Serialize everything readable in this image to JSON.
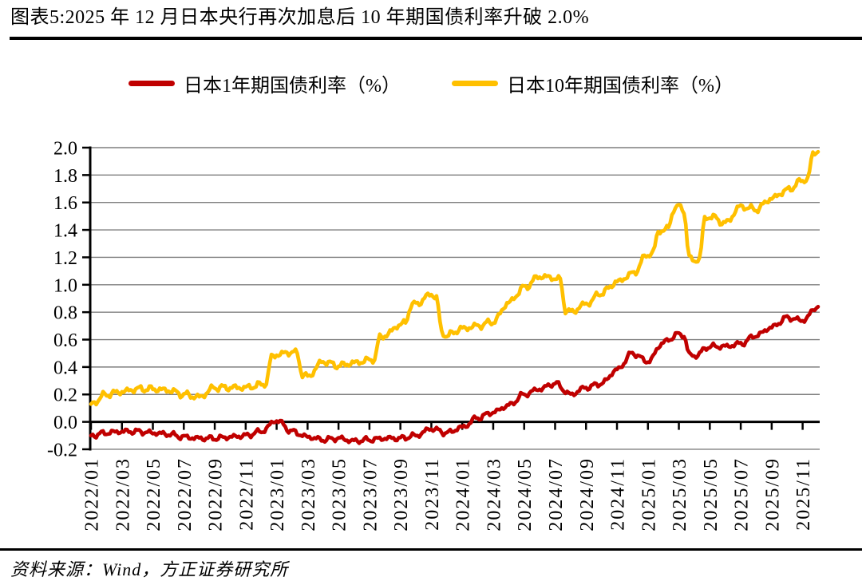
{
  "figure": {
    "title": "图表5:2025 年 12 月日本央行再次加息后 10 年期国债利率升破 2.0%",
    "source": "资料来源：Wind，方正证券研究所"
  },
  "legend": [
    {
      "label": "日本1年期国债利率（%）",
      "color": "#C00000"
    },
    {
      "label": "日本10年期国债利率（%）",
      "color": "#FFC000"
    }
  ],
  "chart_data": {
    "type": "line",
    "title": "2025年12月日本央行再次加息后10年期国债利率升破2.0%",
    "x_range": [
      "2022/01",
      "2025/12"
    ],
    "x_frequency": "monthly",
    "x_tick_labels": [
      "2022/01",
      "2022/03",
      "2022/05",
      "2022/07",
      "2022/09",
      "2022/11",
      "2023/01",
      "2023/03",
      "2023/05",
      "2023/07",
      "2023/09",
      "2023/11",
      "2024/01",
      "2024/03",
      "2024/05",
      "2024/07",
      "2024/09",
      "2024/11",
      "2025/01",
      "2025/03",
      "2025/05",
      "2025/07",
      "2025/09",
      "2025/11"
    ],
    "y_ticks": [
      "2.0",
      "1.8",
      "1.6",
      "1.4",
      "1.2",
      "1.0",
      "0.8",
      "0.6",
      "0.4",
      "0.2",
      "0.0",
      "-0.2"
    ],
    "ylim": [
      -0.2,
      2.0
    ],
    "grid": "horizontal",
    "legend_position": "top",
    "series": [
      {
        "name": "日本1年期国债利率（%）",
        "color": "#C00000",
        "values": [
          -0.1,
          -0.08,
          -0.07,
          -0.07,
          -0.08,
          -0.09,
          -0.11,
          -0.12,
          -0.12,
          -0.11,
          -0.1,
          -0.07,
          0.01,
          -0.07,
          -0.11,
          -0.13,
          -0.12,
          -0.14,
          -0.13,
          -0.12,
          -0.12,
          -0.1,
          -0.05,
          -0.08,
          -0.04,
          0.03,
          0.07,
          0.12,
          0.2,
          0.24,
          0.28,
          0.2,
          0.25,
          0.28,
          0.38,
          0.5,
          0.44,
          0.58,
          0.64,
          0.48,
          0.55,
          0.55,
          0.57,
          0.63,
          0.69,
          0.76,
          0.74,
          0.84
        ]
      },
      {
        "name": "日本10年期国债利率（%）",
        "color": "#FFC000",
        "values": [
          0.13,
          0.2,
          0.22,
          0.24,
          0.24,
          0.23,
          0.2,
          0.18,
          0.25,
          0.25,
          0.25,
          0.27,
          0.49,
          0.51,
          0.33,
          0.44,
          0.41,
          0.43,
          0.45,
          0.63,
          0.71,
          0.86,
          0.93,
          0.63,
          0.68,
          0.7,
          0.73,
          0.87,
          0.98,
          1.06,
          1.05,
          0.8,
          0.86,
          0.94,
          1.02,
          1.08,
          1.22,
          1.4,
          1.57,
          1.17,
          1.5,
          1.45,
          1.57,
          1.55,
          1.63,
          1.69,
          1.76,
          1.97
        ]
      }
    ]
  }
}
